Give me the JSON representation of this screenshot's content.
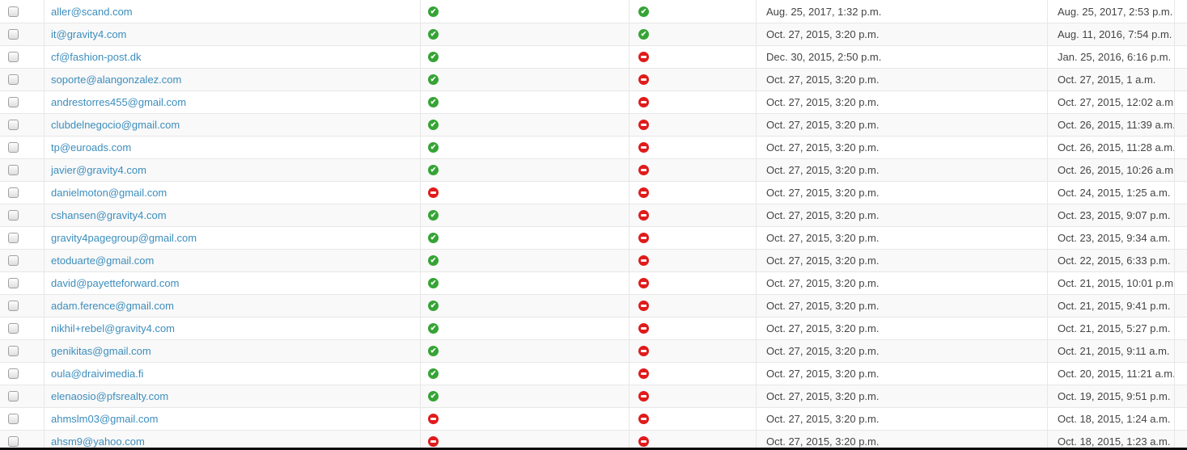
{
  "table": {
    "icons": {
      "yes": "green-check-circle-icon",
      "no": "red-minus-circle-icon"
    },
    "rows": [
      {
        "email": "aller@scand.com",
        "status_a": true,
        "status_b": true,
        "datetime_a": "Aug. 25, 2017, 1:32 p.m.",
        "datetime_b": "Aug. 25, 2017, 2:53 p.m."
      },
      {
        "email": "it@gravity4.com",
        "status_a": true,
        "status_b": true,
        "datetime_a": "Oct. 27, 2015, 3:20 p.m.",
        "datetime_b": "Aug. 11, 2016, 7:54 p.m."
      },
      {
        "email": "cf@fashion-post.dk",
        "status_a": true,
        "status_b": false,
        "datetime_a": "Dec. 30, 2015, 2:50 p.m.",
        "datetime_b": "Jan. 25, 2016, 6:16 p.m."
      },
      {
        "email": "soporte@alangonzalez.com",
        "status_a": true,
        "status_b": false,
        "datetime_a": "Oct. 27, 2015, 3:20 p.m.",
        "datetime_b": "Oct. 27, 2015, 1 a.m."
      },
      {
        "email": "andrestorres455@gmail.com",
        "status_a": true,
        "status_b": false,
        "datetime_a": "Oct. 27, 2015, 3:20 p.m.",
        "datetime_b": "Oct. 27, 2015, 12:02 a.m."
      },
      {
        "email": "clubdelnegocio@gmail.com",
        "status_a": true,
        "status_b": false,
        "datetime_a": "Oct. 27, 2015, 3:20 p.m.",
        "datetime_b": "Oct. 26, 2015, 11:39 a.m."
      },
      {
        "email": "tp@euroads.com",
        "status_a": true,
        "status_b": false,
        "datetime_a": "Oct. 27, 2015, 3:20 p.m.",
        "datetime_b": "Oct. 26, 2015, 11:28 a.m."
      },
      {
        "email": "javier@gravity4.com",
        "status_a": true,
        "status_b": false,
        "datetime_a": "Oct. 27, 2015, 3:20 p.m.",
        "datetime_b": "Oct. 26, 2015, 10:26 a.m."
      },
      {
        "email": "danielmoton@gmail.com",
        "status_a": false,
        "status_b": false,
        "datetime_a": "Oct. 27, 2015, 3:20 p.m.",
        "datetime_b": "Oct. 24, 2015, 1:25 a.m."
      },
      {
        "email": "cshansen@gravity4.com",
        "status_a": true,
        "status_b": false,
        "datetime_a": "Oct. 27, 2015, 3:20 p.m.",
        "datetime_b": "Oct. 23, 2015, 9:07 p.m."
      },
      {
        "email": "gravity4pagegroup@gmail.com",
        "status_a": true,
        "status_b": false,
        "datetime_a": "Oct. 27, 2015, 3:20 p.m.",
        "datetime_b": "Oct. 23, 2015, 9:34 a.m."
      },
      {
        "email": "etoduarte@gmail.com",
        "status_a": true,
        "status_b": false,
        "datetime_a": "Oct. 27, 2015, 3:20 p.m.",
        "datetime_b": "Oct. 22, 2015, 6:33 p.m."
      },
      {
        "email": "david@payetteforward.com",
        "status_a": true,
        "status_b": false,
        "datetime_a": "Oct. 27, 2015, 3:20 p.m.",
        "datetime_b": "Oct. 21, 2015, 10:01 p.m."
      },
      {
        "email": "adam.ference@gmail.com",
        "status_a": true,
        "status_b": false,
        "datetime_a": "Oct. 27, 2015, 3:20 p.m.",
        "datetime_b": "Oct. 21, 2015, 9:41 p.m."
      },
      {
        "email": "nikhil+rebel@gravity4.com",
        "status_a": true,
        "status_b": false,
        "datetime_a": "Oct. 27, 2015, 3:20 p.m.",
        "datetime_b": "Oct. 21, 2015, 5:27 p.m."
      },
      {
        "email": "genikitas@gmail.com",
        "status_a": true,
        "status_b": false,
        "datetime_a": "Oct. 27, 2015, 3:20 p.m.",
        "datetime_b": "Oct. 21, 2015, 9:11 a.m."
      },
      {
        "email": "oula@draivimedia.fi",
        "status_a": true,
        "status_b": false,
        "datetime_a": "Oct. 27, 2015, 3:20 p.m.",
        "datetime_b": "Oct. 20, 2015, 11:21 a.m."
      },
      {
        "email": "elenaosio@pfsrealty.com",
        "status_a": true,
        "status_b": false,
        "datetime_a": "Oct. 27, 2015, 3:20 p.m.",
        "datetime_b": "Oct. 19, 2015, 9:51 p.m."
      },
      {
        "email": "ahmslm03@gmail.com",
        "status_a": false,
        "status_b": false,
        "datetime_a": "Oct. 27, 2015, 3:20 p.m.",
        "datetime_b": "Oct. 18, 2015, 1:24 a.m."
      },
      {
        "email": "ahsm9@yahoo.com",
        "status_a": false,
        "status_b": false,
        "datetime_a": "Oct. 27, 2015, 3:20 p.m.",
        "datetime_b": "Oct. 18, 2015, 1:23 a.m."
      }
    ]
  },
  "colors": {
    "link": "#3c8dbc",
    "icon_yes": "#35a435",
    "icon_no": "#e01b1b",
    "row_stripe": "#f9f9f9",
    "cell_border": "#e7e7e7",
    "date_text": "#444444",
    "bottom_bar": "#0a0a0a"
  }
}
